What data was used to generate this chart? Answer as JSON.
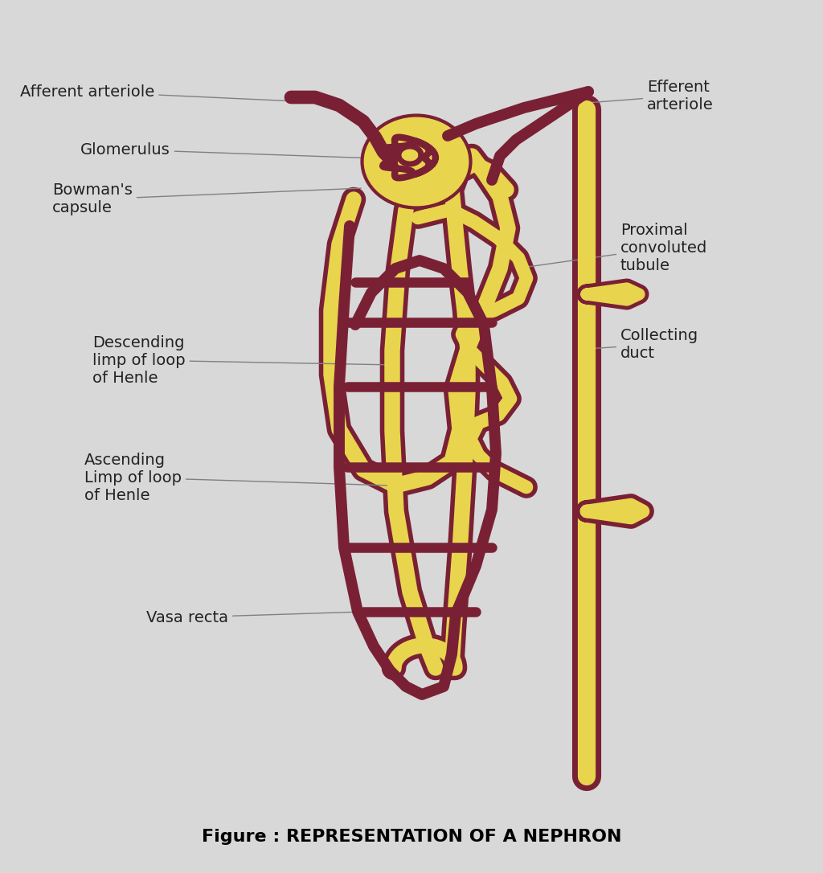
{
  "title": "Figure : REPRESENTATION OF A NEPHRON",
  "bg_color": "#d8d8d8",
  "yellow": "#e8d44d",
  "dark_red": "#7a2035",
  "label_color": "#222222",
  "labels": {
    "afferent_arteriole": "Afferent arteriole",
    "glomerulus": "Glomerulus",
    "bowmans_capsule": "Bowman's\ncapsule",
    "efferent_arteriole": "Efferent\narteriole",
    "proximal_convoluted": "Proximal\nconvoluted\ntubule",
    "collecting_duct": "Collecting\nduct",
    "descending_limp": "Descending\nlimp of loop\nof Henle",
    "ascending_limp": "Ascending\nLimp of loop\nof Henle",
    "vasa_recta": "Vasa recta"
  },
  "font_size_labels": 14,
  "font_size_title": 16
}
